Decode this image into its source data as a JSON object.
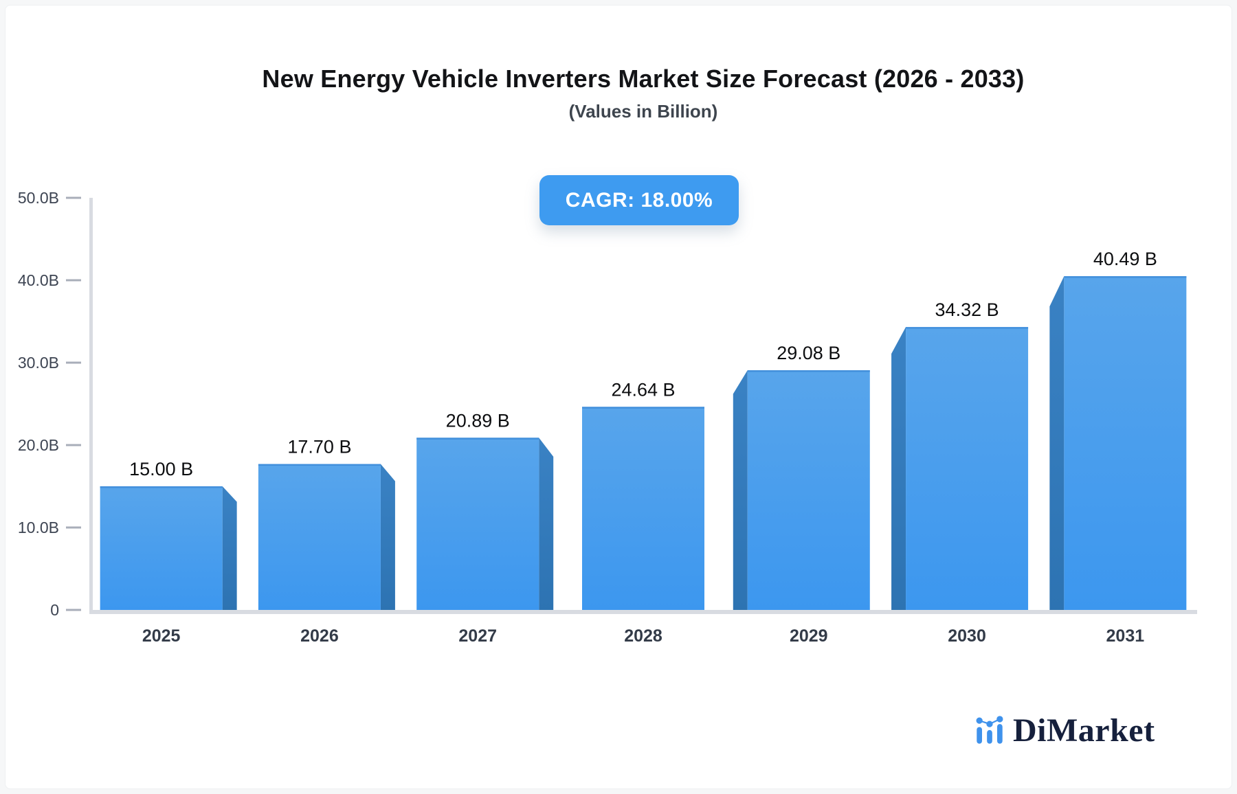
{
  "header": {
    "title": "New Energy Vehicle Inverters Market Size Forecast (2026 - 2033)",
    "subtitle": "(Values in Billion)"
  },
  "badge": {
    "label": "CAGR: 18.00%",
    "bg_color": "#3E9BF0"
  },
  "chart_data": {
    "type": "bar",
    "title": "New Energy Vehicle Inverters Market Size Forecast (2026 - 2033)",
    "subtitle": "(Values in Billion)",
    "categories": [
      "2025",
      "2026",
      "2027",
      "2028",
      "2029",
      "2030",
      "2031"
    ],
    "values": [
      15.0,
      17.7,
      20.89,
      24.64,
      29.08,
      34.32,
      40.49
    ],
    "bar_labels": [
      "15.00 B",
      "17.70 B",
      "20.89 B",
      "24.64 B",
      "29.08 B",
      "34.32 B",
      "40.49 B"
    ],
    "xlabel": "",
    "ylabel": "",
    "ylim": [
      0,
      50
    ],
    "yticks": [
      0,
      10,
      20,
      30,
      40,
      50
    ],
    "ytick_labels": [
      "0",
      "10.0B",
      "20.0B",
      "30.0B",
      "40.0B",
      "50.0B"
    ],
    "grid": false,
    "legend": null,
    "annotations": [
      "CAGR: 18.00%"
    ],
    "style": "3d-bars, side face on right for left-of-center bars, on left for right-of-center bars",
    "colors": {
      "bar_top": "#58A5EB",
      "bar_bottom": "#3C97EF",
      "bar_top_edge": "#4390DC",
      "bar_side_top": "#3A82C4",
      "bar_side_bottom": "#2D73B2",
      "axis_line": "#D8DBE1",
      "tick": "#A8AEB9",
      "tick_label": "#3D4452",
      "category_label": "#333B48",
      "value_label": "#0D0E10"
    }
  },
  "branding": {
    "name": "DiMarket",
    "icon": "dimarket-chart-icon",
    "icon_color": "#3F92EC",
    "text_color": "#16203C"
  }
}
